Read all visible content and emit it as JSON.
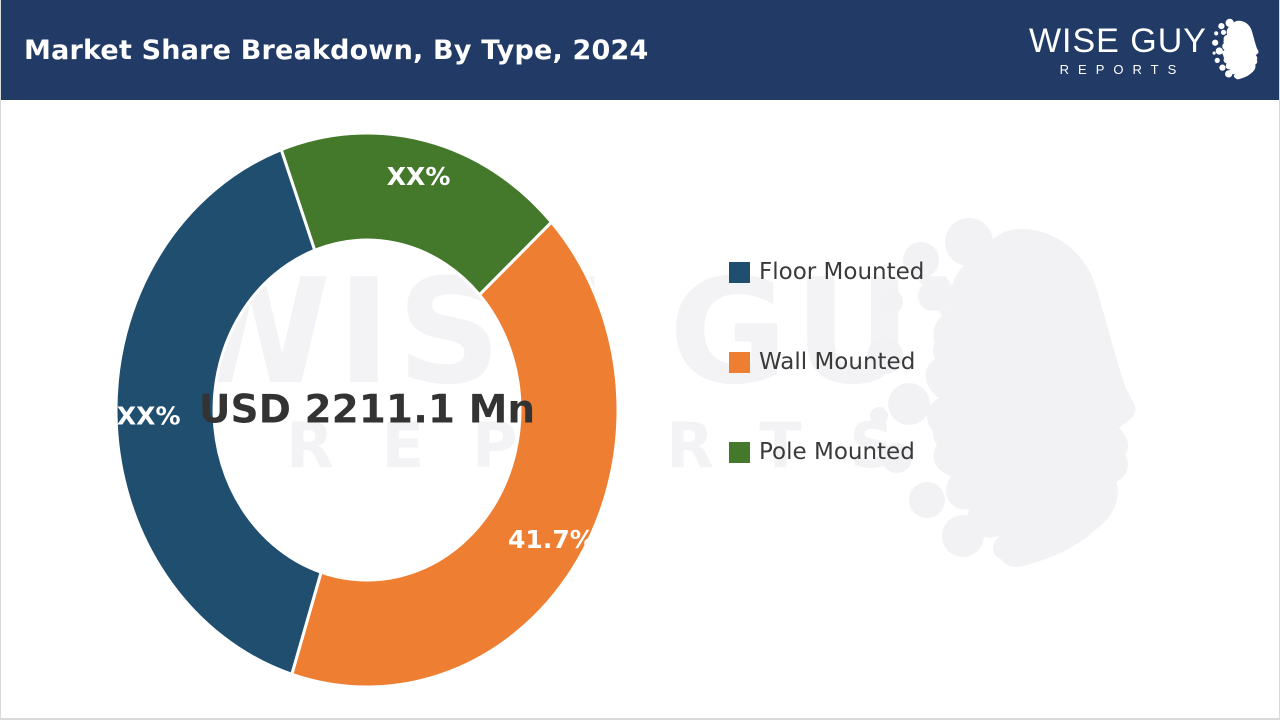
{
  "header": {
    "title": "Market Share Breakdown, By Type, 2024",
    "logo": {
      "name": "WISE GUY",
      "tagline": "REPORTS"
    }
  },
  "chart_data": {
    "type": "donut",
    "title": "Market Share Breakdown, By Type, 2024",
    "center_label": "USD 2211.1 Mn",
    "start_angle_deg": -20,
    "hole_ratio": 0.61,
    "legend_position": "right",
    "segments": [
      {
        "name": "Pole Mounted",
        "value": 18.7,
        "display_label": "XX%",
        "color": "#44782A"
      },
      {
        "name": "Wall Mounted",
        "value": 41.7,
        "display_label": "41.7%",
        "color": "#EE7E31"
      },
      {
        "name": "Floor Mounted",
        "value": 39.6,
        "display_label": "XX%",
        "color": "#1F4E6F"
      }
    ],
    "legend_items": [
      "Floor Mounted",
      "Wall Mounted",
      "Pole Mounted"
    ]
  },
  "watermark": {
    "line1": "WISE GUY",
    "line2": "REPORTS"
  },
  "colors": {
    "header_bg": "#213A66",
    "blue": "#1F4E6F",
    "orange": "#EE7E31",
    "green": "#44782A",
    "center_text": "#333333",
    "legend_text": "#3A3A3A",
    "watermark_gray": "#F3F3F5",
    "page_border": "#D9D9D9",
    "percent_label_text": "#FFFFFF"
  }
}
